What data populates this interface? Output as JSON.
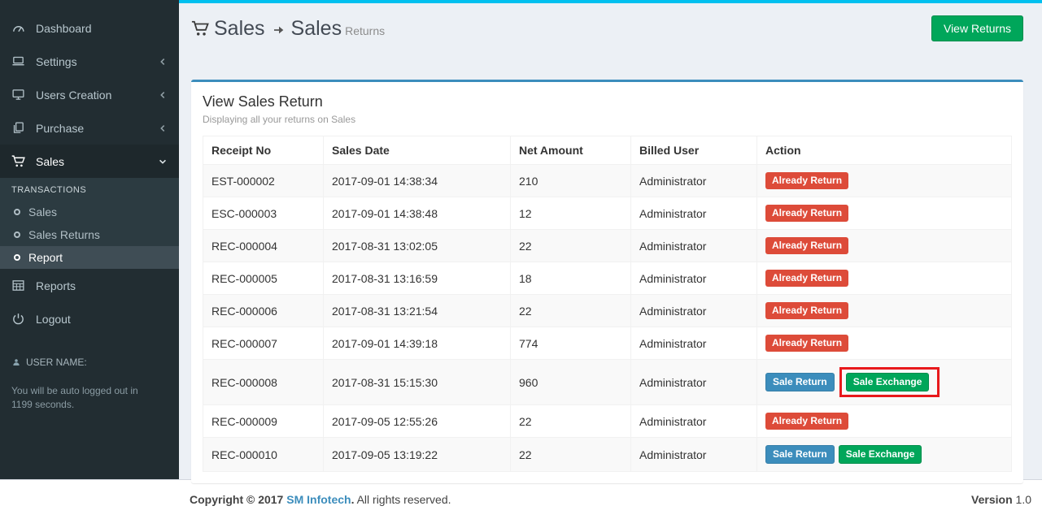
{
  "colors": {
    "top_accent": "#00c0ef",
    "primary_blue": "#3c8dbc",
    "success_green": "#00a65a",
    "danger_red": "#dd4b39",
    "annotation_red": "#e8191c",
    "sidebar_bg": "#222d32"
  },
  "sidebar": {
    "items": [
      {
        "label": "Dashboard"
      },
      {
        "label": "Settings"
      },
      {
        "label": "Users Creation"
      },
      {
        "label": "Purchase"
      },
      {
        "label": "Sales"
      }
    ],
    "section_label": "TRANSACTIONS",
    "sub_items": [
      {
        "label": "Sales"
      },
      {
        "label": "Sales Returns"
      },
      {
        "label": "Report"
      }
    ],
    "reports_label": "Reports",
    "logout_label": "Logout",
    "user_label": "USER NAME:",
    "logout_notice": "You will be auto logged out in 1199 seconds."
  },
  "header": {
    "breadcrumb_primary": "Sales",
    "breadcrumb_secondary": "Sales",
    "breadcrumb_tertiary": "Returns",
    "view_returns_button": "View Returns"
  },
  "card": {
    "title": "View Sales Return",
    "subtitle": "Displaying all your returns on Sales"
  },
  "badges": {
    "already_return": "Already Return",
    "sale_return": "Sale Return",
    "sale_exchange": "Sale Exchange"
  },
  "table": {
    "columns": [
      "Receipt No",
      "Sales Date",
      "Net Amount",
      "Billed User",
      "Action"
    ],
    "rows": [
      {
        "receipt": "EST-000002",
        "date": "2017-09-01 14:38:34",
        "amount": "210",
        "user": "Administrator",
        "actions": [
          "already_return"
        ]
      },
      {
        "receipt": "ESC-000003",
        "date": "2017-09-01 14:38:48",
        "amount": "12",
        "user": "Administrator",
        "actions": [
          "already_return"
        ]
      },
      {
        "receipt": "REC-000004",
        "date": "2017-08-31 13:02:05",
        "amount": "22",
        "user": "Administrator",
        "actions": [
          "already_return"
        ]
      },
      {
        "receipt": "REC-000005",
        "date": "2017-08-31 13:16:59",
        "amount": "18",
        "user": "Administrator",
        "actions": [
          "already_return"
        ]
      },
      {
        "receipt": "REC-000006",
        "date": "2017-08-31 13:21:54",
        "amount": "22",
        "user": "Administrator",
        "actions": [
          "already_return"
        ]
      },
      {
        "receipt": "REC-000007",
        "date": "2017-09-01 14:39:18",
        "amount": "774",
        "user": "Administrator",
        "actions": [
          "already_return"
        ]
      },
      {
        "receipt": "REC-000008",
        "date": "2017-08-31 15:15:30",
        "amount": "960",
        "user": "Administrator",
        "actions": [
          "sale_return",
          "sale_exchange"
        ],
        "highlight": "sale_exchange"
      },
      {
        "receipt": "REC-000009",
        "date": "2017-09-05 12:55:26",
        "amount": "22",
        "user": "Administrator",
        "actions": [
          "already_return"
        ]
      },
      {
        "receipt": "REC-000010",
        "date": "2017-09-05 13:19:22",
        "amount": "22",
        "user": "Administrator",
        "actions": [
          "sale_return",
          "sale_exchange"
        ]
      }
    ]
  },
  "footer": {
    "copyright_prefix": "Copyright © 2017 ",
    "brand": "SM Infotech",
    "copyright_dot": ".",
    "rights": " All rights reserved.",
    "version_label": "Version",
    "version_number": "1.0"
  }
}
